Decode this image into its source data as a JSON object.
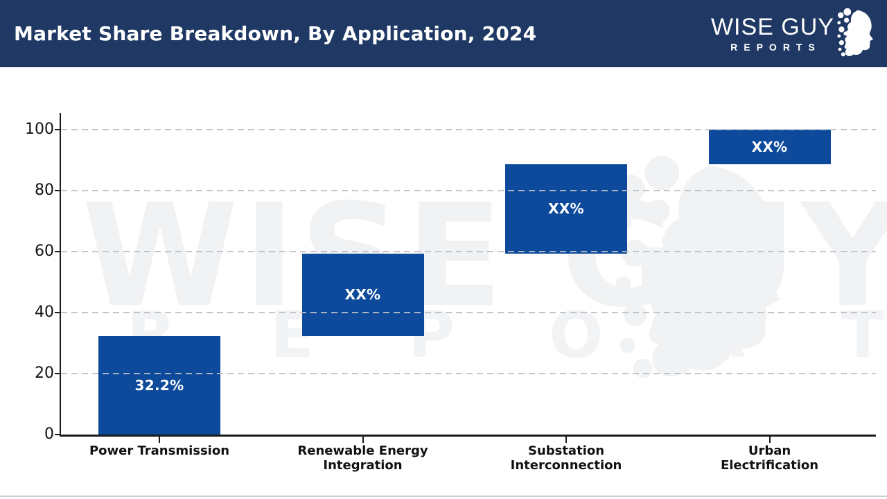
{
  "header": {
    "title": "Market Share Breakdown, By Application, 2024",
    "logo": {
      "wordmark": "WISE GUY",
      "subtitle": "REPORTS"
    }
  },
  "watermark": {
    "line1": "WISE GUY",
    "line2": "R E P O R T S"
  },
  "chart_data": {
    "type": "bar",
    "subtype": "floating-waterfall",
    "title": "Market Share Breakdown, By Application, 2024",
    "categories": [
      "Power Transmission",
      "Renewable Energy\nIntegration",
      "Substation\nInterconnection",
      "Urban\nElectrification"
    ],
    "segments": [
      {
        "category": "Power Transmission",
        "start": 0,
        "end": 32.2,
        "label": "32.2%"
      },
      {
        "category": "Renewable Energy Integration",
        "start": 32.2,
        "end": 59.4,
        "label": "XX%"
      },
      {
        "category": "Substation Interconnection",
        "start": 59.4,
        "end": 88.7,
        "label": "XX%"
      },
      {
        "category": "Urban Electrification",
        "start": 88.7,
        "end": 100,
        "label": "XX%"
      }
    ],
    "ylim": [
      0,
      100
    ],
    "yticks": [
      0,
      20,
      40,
      60,
      80,
      100
    ],
    "xlabel": "",
    "ylabel": "",
    "grid": "horizontal-dashed",
    "legend": "none"
  },
  "colors": {
    "header_bg": "#1f3864",
    "bar_fill": "#0d4a9c",
    "bar_label": "#ffffff",
    "watermark": "#f1f2f4",
    "grid": "#dfe1e4",
    "axis": "#1a1a1a"
  }
}
